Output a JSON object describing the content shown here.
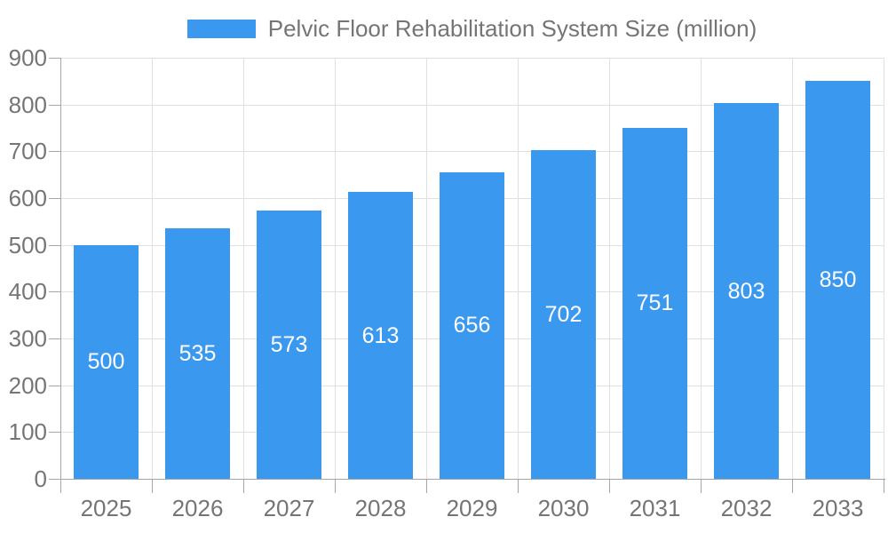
{
  "chart_data": {
    "type": "bar",
    "title": "Pelvic Floor Rehabilitation System Size (million)",
    "categories": [
      "2025",
      "2026",
      "2027",
      "2028",
      "2029",
      "2030",
      "2031",
      "2032",
      "2033"
    ],
    "values": [
      500,
      535,
      573,
      613,
      656,
      702,
      751,
      803,
      850
    ],
    "xlabel": "",
    "ylabel": "",
    "ylim": [
      0,
      900
    ],
    "ytick_step": 100,
    "ytick_labels": [
      "0",
      "100",
      "200",
      "300",
      "400",
      "500",
      "600",
      "700",
      "800",
      "900"
    ],
    "grid": true,
    "legend_position": "top",
    "bar_color": "#3a99ee",
    "value_label_color": "#ffffff",
    "axis_text_color": "#757575",
    "legend_text_color": "#757575",
    "grid_color": "#e0e0e0",
    "axis_line_color": "#a6a6a6",
    "background": "#ffffff"
  }
}
